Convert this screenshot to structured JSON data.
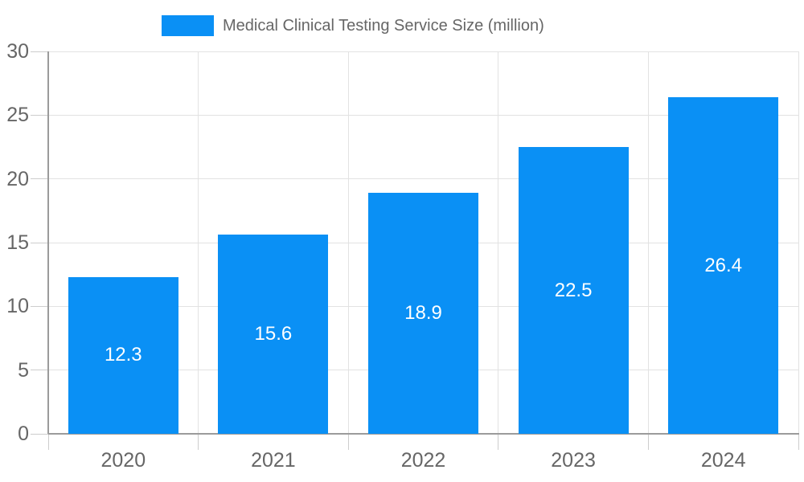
{
  "legend": {
    "label": "Medical Clinical Testing Service Size (million)"
  },
  "colors": {
    "bar": "#0A90F5",
    "grid_line": "#e2e2e2",
    "tick": "#cdcdcd",
    "axis_line": "#9b9b9b",
    "axis_label": "#666666",
    "legend_text": "#666666",
    "value_label": "#ffffff",
    "background": "#ffffff"
  },
  "chart_data": {
    "type": "bar",
    "title": "Medical Clinical Testing Service Size (million)",
    "series_name": "Medical Clinical Testing Service Size (million)",
    "categories": [
      "2020",
      "2021",
      "2022",
      "2023",
      "2024"
    ],
    "values": [
      12.3,
      15.6,
      18.9,
      22.5,
      26.4
    ],
    "value_labels": [
      "12.3",
      "15.6",
      "18.9",
      "22.5",
      "26.4"
    ],
    "xlabel": "",
    "ylabel": "",
    "ylim": [
      0,
      30
    ],
    "yticks": [
      0,
      5,
      10,
      15,
      20,
      25,
      30
    ],
    "grid": true,
    "legend_position": "top-center",
    "value_label_position": "center-of-bar"
  }
}
